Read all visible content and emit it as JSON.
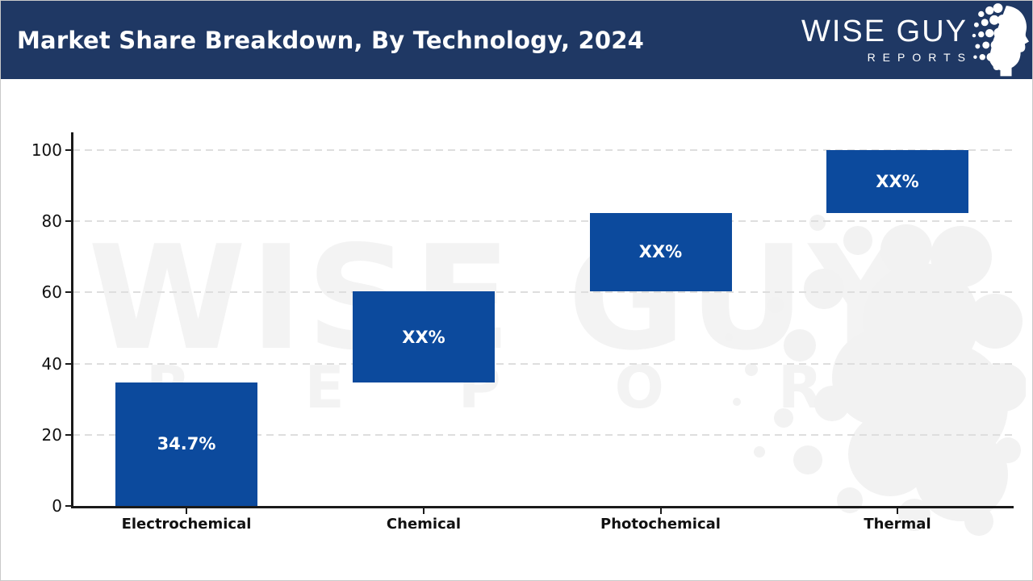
{
  "header": {
    "title": "Market Share Breakdown, By Technology, 2024",
    "logo": {
      "primary": "WISE GUY",
      "secondary": "REPORTS"
    }
  },
  "watermark": {
    "primary": "WISE GUY",
    "secondary": "R E P O R T S"
  },
  "chart_data": {
    "type": "bar",
    "subtype": "waterfall",
    "title": "Market Share Breakdown, By Technology, 2024",
    "xlabel": "",
    "ylabel": "",
    "ylim": [
      0,
      100
    ],
    "yticks": [
      0,
      20,
      40,
      60,
      80,
      100
    ],
    "grid": "horizontal-dashed",
    "legend": "none",
    "categories": [
      "Electrochemical",
      "Chemical",
      "Photochemical",
      "Thermal"
    ],
    "segments": [
      {
        "category": "Electrochemical",
        "start": 0,
        "end": 34.7,
        "label": "34.7%"
      },
      {
        "category": "Chemical",
        "start": 34.7,
        "end": 60.3,
        "label": "XX%"
      },
      {
        "category": "Photochemical",
        "start": 60.3,
        "end": 82.4,
        "label": "XX%"
      },
      {
        "category": "Thermal",
        "start": 82.4,
        "end": 100,
        "label": "XX%"
      }
    ],
    "colors": {
      "bar": "#0C4A9D",
      "header_bg": "#1F3864",
      "grid": "#DEDEDE",
      "axis": "#1A1A1A",
      "watermark": "#F3F3F3",
      "page_border": "#C9C9C9"
    }
  }
}
